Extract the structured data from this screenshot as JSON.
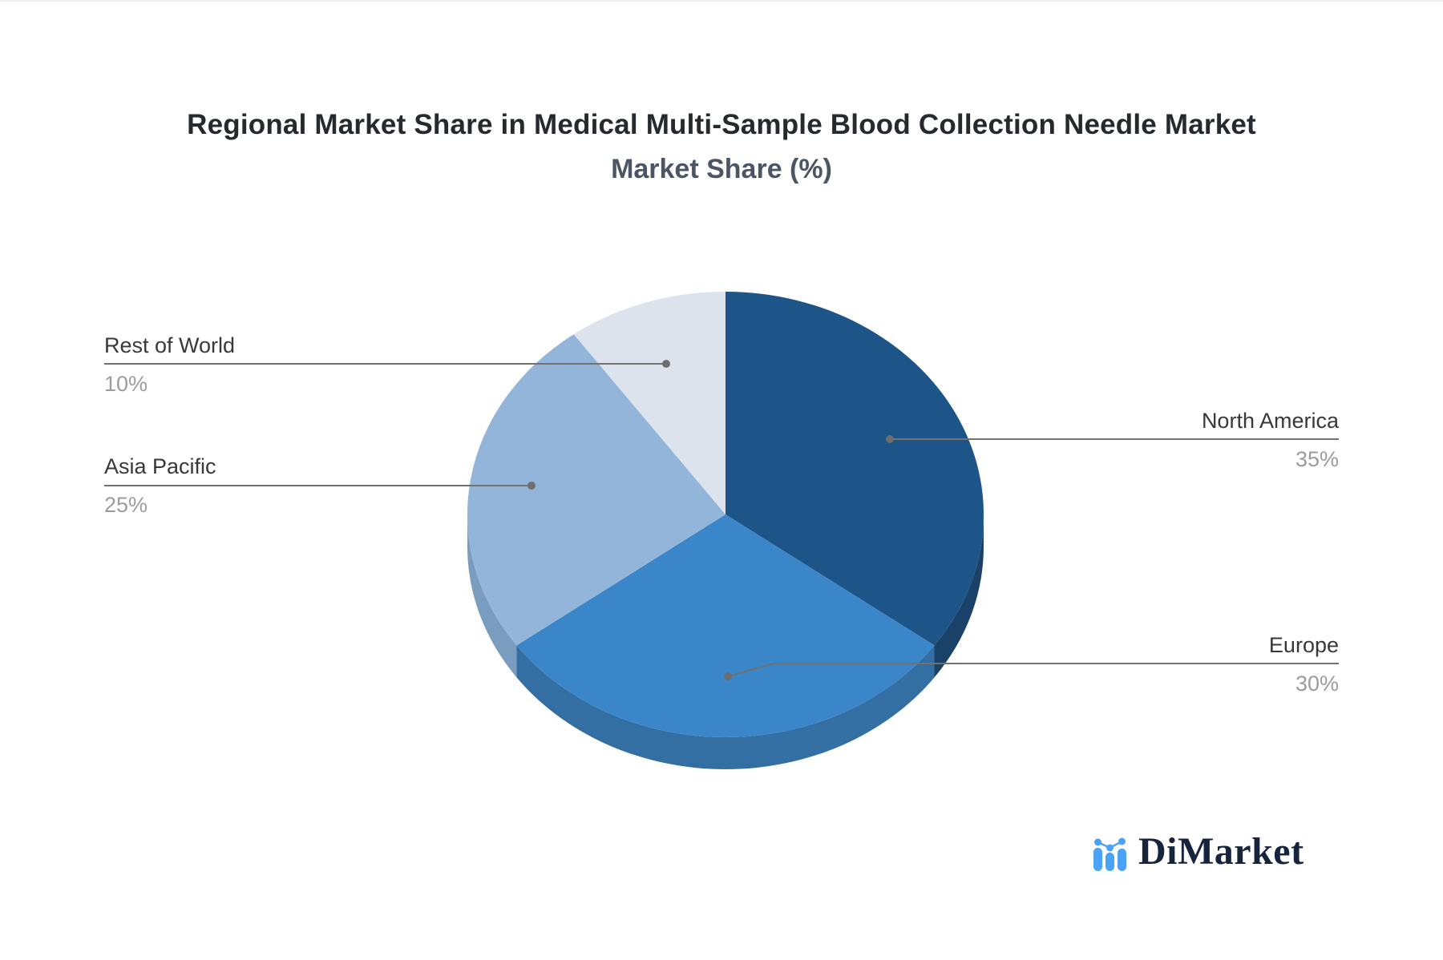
{
  "title": "Regional Market Share in Medical Multi-Sample Blood Collection Needle Market",
  "subtitle": "Market Share (%)",
  "logo": {
    "text": "DiMarket",
    "icon": "bar-line-chart-icon",
    "icon_color": "#4ba3f7",
    "text_color": "#17243d"
  },
  "chart_data": {
    "type": "pie",
    "title": "Regional Market Share in Medical Multi-Sample Blood Collection Needle Market",
    "subtitle": "Market Share (%)",
    "unit": "%",
    "effect": "3d",
    "direction": "clockwise",
    "start_angle_deg": 0,
    "legend": "none",
    "slices": [
      {
        "label": "North America",
        "value": 35,
        "value_text": "35%",
        "color": "#1d5589",
        "side_color": "#1a4268",
        "label_side": "right"
      },
      {
        "label": "Europe",
        "value": 30,
        "value_text": "30%",
        "color": "#3a86c8",
        "side_color": "#346fa3",
        "label_side": "right"
      },
      {
        "label": "Asia Pacific",
        "value": 25,
        "value_text": "25%",
        "color": "#92b5d9",
        "side_color": "#7a9cbf",
        "label_side": "left"
      },
      {
        "label": "Rest of World",
        "value": 10,
        "value_text": "10%",
        "color": "#dce3ec",
        "side_color": "#c2cbd9",
        "label_side": "left"
      }
    ],
    "style": {
      "leader_line_color": "#717171",
      "leader_dot_color": "#6e6e6e",
      "label_name_color": "#383838",
      "label_value_color": "#9c9c9c",
      "title_color": "#26292e",
      "subtitle_color": "#4b5564"
    }
  }
}
